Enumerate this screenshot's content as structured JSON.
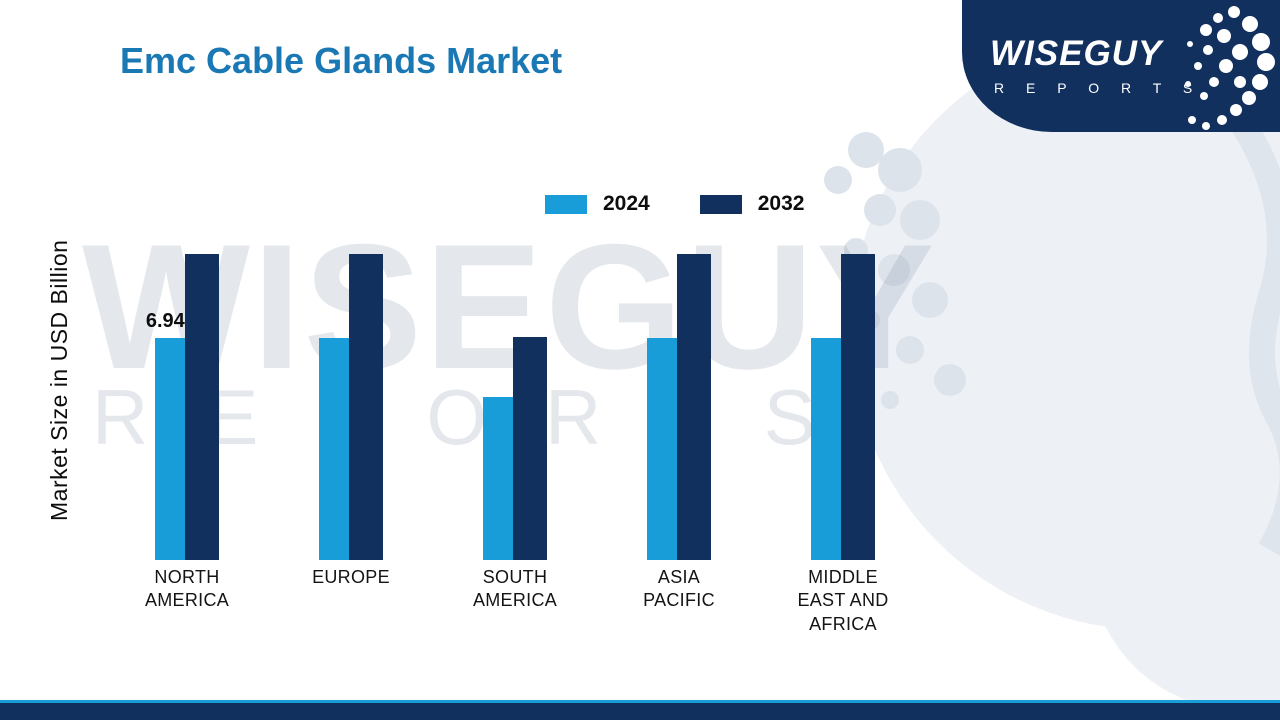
{
  "header": {
    "title": "Emc Cable Glands Market"
  },
  "logo": {
    "name": "WISEGUY",
    "subtitle": "R E P O R T S"
  },
  "watermark": {
    "name": "WISEGUY",
    "subtitle": "REPORTS"
  },
  "chart_data": {
    "type": "bar",
    "title": "Emc Cable Glands Market",
    "ylabel": "Market Size in USD Billion",
    "xlabel": "",
    "categories": [
      "NORTH AMERICA",
      "EUROPE",
      "SOUTH AMERICA",
      "ASIA PACIFIC",
      "MIDDLE EAST AND AFRICA"
    ],
    "series": [
      {
        "name": "2024",
        "color": "#199dd9",
        "values": [
          6.94,
          6.94,
          5.1,
          6.94,
          6.94
        ]
      },
      {
        "name": "2032",
        "color": "#12305e",
        "values": [
          9.6,
          9.6,
          7.0,
          9.6,
          9.6
        ]
      }
    ],
    "annotations": [
      {
        "category_index": 0,
        "series_index": 0,
        "text": "6.94"
      }
    ],
    "ylim": [
      0,
      10.4
    ],
    "grid": false,
    "legend_position": "top"
  },
  "colors": {
    "accent_blue": "#199dd9",
    "navy": "#12305e",
    "title_blue": "#1a78b4",
    "watermark_gray": "#5f7190",
    "background_shape": "#edf1f6"
  }
}
